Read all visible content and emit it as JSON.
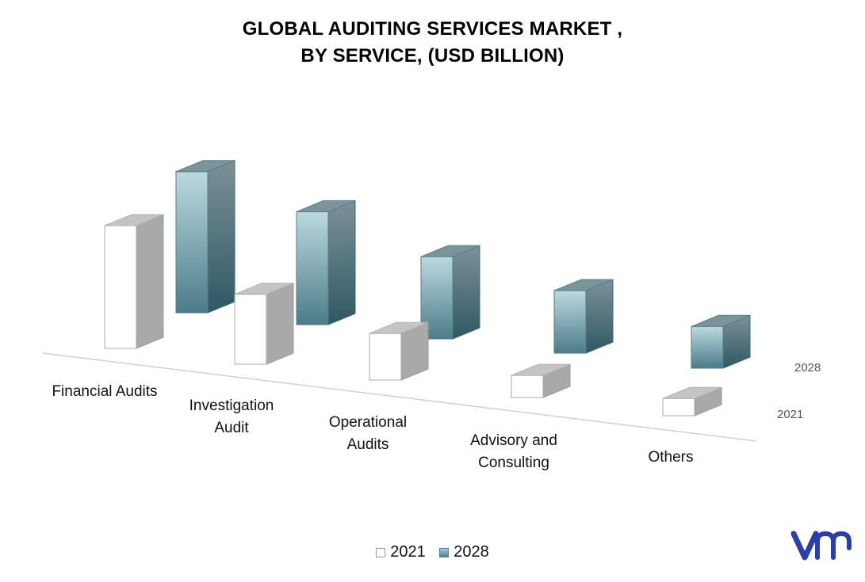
{
  "title_lines": [
    "GLOBAL AUDITING SERVICES MARKET ,",
    "BY SERVICE, (USD BILLION)"
  ],
  "chart_data": {
    "type": "bar",
    "title": "GLOBAL AUDITING SERVICES MARKET , BY SERVICE, (USD BILLION)",
    "categories": [
      "Financial Audits",
      "Investigation Audit",
      "Operational Audits",
      "Advisory and Consulting",
      "Others"
    ],
    "category_lines": [
      [
        "Financial Audits"
      ],
      [
        "Investigation",
        "Audit"
      ],
      [
        "Operational",
        "Audits"
      ],
      [
        "Advisory and",
        "Consulting"
      ],
      [
        "Others"
      ]
    ],
    "series": [
      {
        "name": "2021",
        "values": [
          10.0,
          5.7,
          3.8,
          1.8,
          1.4
        ]
      },
      {
        "name": "2028",
        "values": [
          11.5,
          9.2,
          6.7,
          5.1,
          3.4
        ]
      }
    ],
    "depth_labels": [
      "2028",
      "2021"
    ],
    "ylim": [
      0,
      12
    ],
    "three_d": true,
    "grid": false,
    "legend_position": "bottom",
    "colors": {
      "2021": "#ffffff",
      "2028": "#7fa9b5",
      "axis": "#cfcfcf"
    }
  },
  "legend": [
    {
      "label": "2021"
    },
    {
      "label": "2028"
    }
  ],
  "logo": {
    "text": "VMR"
  }
}
